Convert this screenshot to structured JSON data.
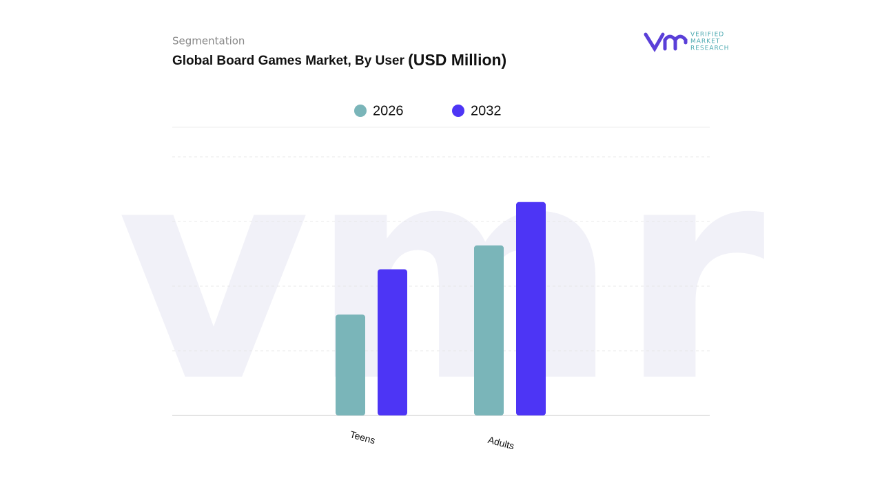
{
  "subtitle": "Segmentation",
  "logo": {
    "lines": [
      "VERIFIED",
      "MARKET",
      "RESEARCH"
    ]
  },
  "chart_data": {
    "type": "bar",
    "title": "Global Board Games Market, By User",
    "unit": "(USD Million)",
    "categories": [
      "Teens",
      "Adults"
    ],
    "series": [
      {
        "name": "2026",
        "color": "#7ab5b9",
        "values": [
          1.56,
          2.63
        ]
      },
      {
        "name": "2032",
        "color": "#4d35f5",
        "values": [
          2.26,
          3.3
        ]
      }
    ],
    "ylim": [
      0,
      4.5
    ],
    "yticks": [
      0,
      1,
      2,
      3,
      4
    ],
    "grid": true,
    "legend": "top"
  }
}
